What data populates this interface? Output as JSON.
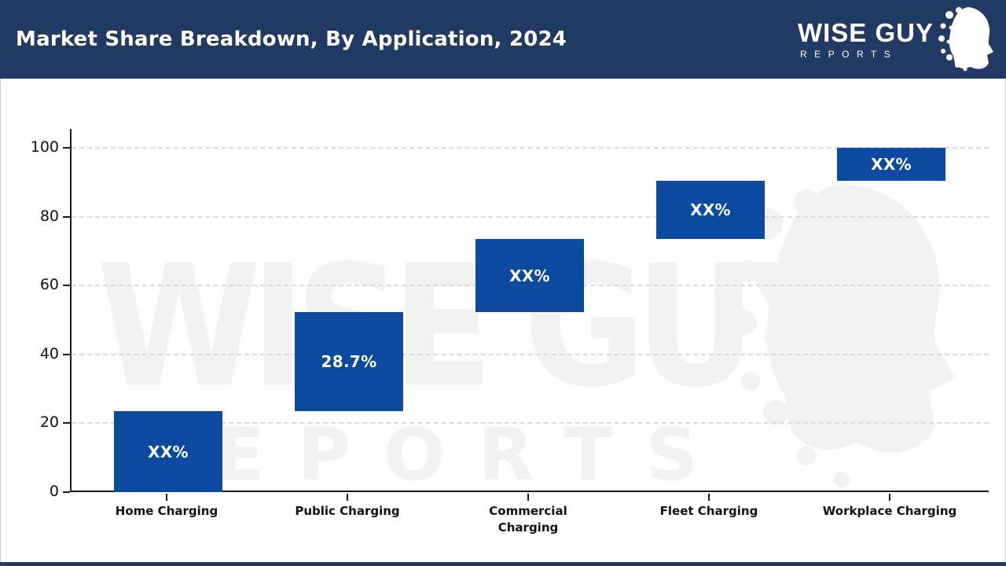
{
  "header": {
    "title": "Market Share Breakdown, By Application, 2024",
    "bg_color": "#213a64",
    "logo": {
      "line1": "WISE GUY",
      "line2": "REPORTS"
    }
  },
  "watermark": {
    "line1": "WISE GUY",
    "line2": "REPORTS"
  },
  "chart_data": {
    "type": "bar",
    "subtype": "floating-waterfall",
    "title": "Market Share Breakdown, By Application, 2024",
    "categories": [
      "Home Charging",
      "Public Charging",
      "Commercial\nCharging",
      "Fleet Charging",
      "Workplace Charging"
    ],
    "segments": [
      {
        "from": 0,
        "to": 23.5,
        "value": 23.5,
        "label": "XX%"
      },
      {
        "from": 23.5,
        "to": 52.2,
        "value": 28.7,
        "label": "28.7%"
      },
      {
        "from": 52.2,
        "to": 73.5,
        "value": 21.3,
        "label": "XX%"
      },
      {
        "from": 73.5,
        "to": 90.4,
        "value": 16.9,
        "label": "XX%"
      },
      {
        "from": 90.4,
        "to": 100,
        "value": 9.6,
        "label": "XX%"
      }
    ],
    "ylim": [
      0,
      100
    ],
    "yticks": [
      0,
      20,
      40,
      60,
      80,
      100
    ],
    "xlabel": "",
    "ylabel": "",
    "grid": "horizontal-dashed",
    "legend": "none",
    "bar_color": "#0c4a9f",
    "label_color": "#ffffff",
    "axis_color": "#1c1c1c",
    "gridline_color": "#d9d9d9"
  }
}
